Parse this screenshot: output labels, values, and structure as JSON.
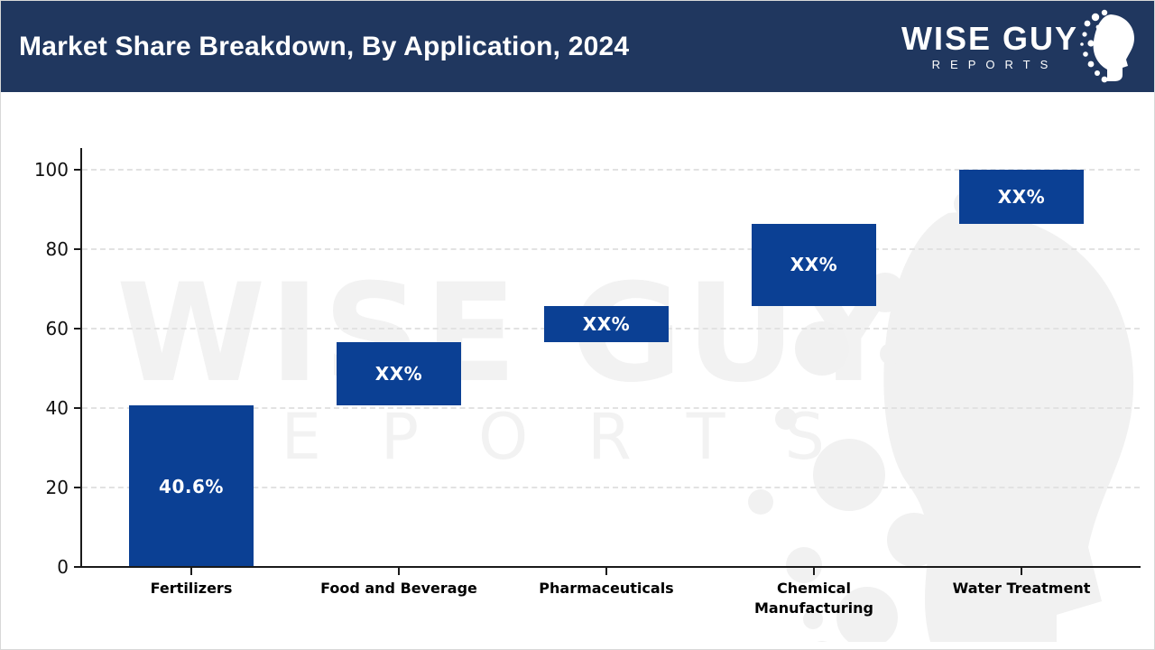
{
  "header": {
    "title": "Market Share Breakdown, By Application, 2024",
    "bg_color": "#20375f",
    "logo": {
      "line1": "WISE GUY",
      "line2": "REPORTS"
    }
  },
  "watermark": {
    "line1": "WISE GUY",
    "line2": "REPORTS"
  },
  "chart_data": {
    "type": "bar",
    "subtype": "waterfall",
    "title": "Market Share Breakdown, By Application, 2024",
    "xlabel": "",
    "ylabel": "",
    "categories": [
      "Fertilizers",
      "Food and Beverage",
      "Pharmaceuticals",
      "Chemical Manufacturing",
      "Water Treatment"
    ],
    "segments": [
      {
        "start": 0,
        "end": 40.6,
        "size": 40.6,
        "label": "40.6%"
      },
      {
        "start": 40.6,
        "end": 56.6,
        "size": 16.0,
        "label": "XX%"
      },
      {
        "start": 56.6,
        "end": 65.7,
        "size": 9.1,
        "label": "XX%"
      },
      {
        "start": 65.7,
        "end": 86.4,
        "size": 20.7,
        "label": "XX%"
      },
      {
        "start": 86.4,
        "end": 100,
        "size": 13.6,
        "label": "XX%"
      }
    ],
    "yticks": [
      0,
      20,
      40,
      60,
      80,
      100
    ],
    "ylim": [
      0,
      105
    ],
    "grid": "horizontal-dashed",
    "legend": "none",
    "bar_color": "#0b4094",
    "axis_color": "#1a1a1a",
    "gridline_color": "#e2e2e2"
  }
}
